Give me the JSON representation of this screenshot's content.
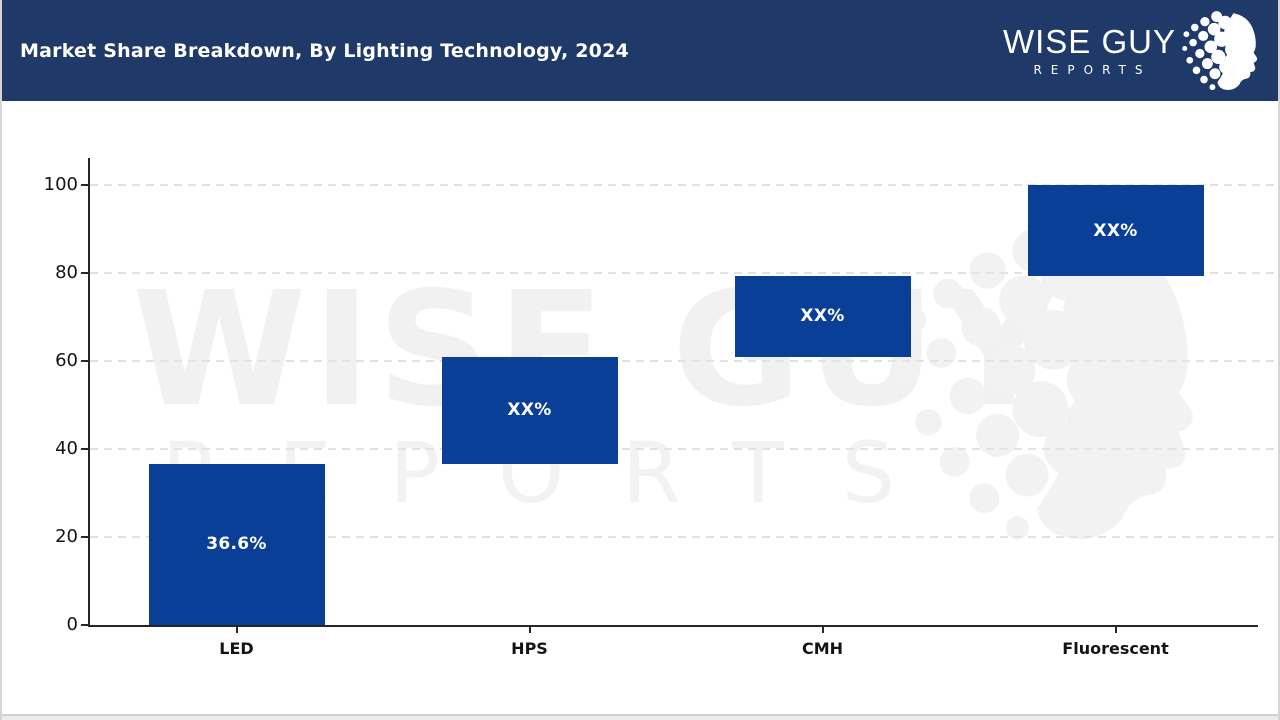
{
  "header": {
    "title": "Market Share Breakdown, By Lighting Technology, 2024",
    "background": "#1f3a68",
    "logo": {
      "primary": "WISE GUY",
      "secondary": "REPORTS"
    }
  },
  "watermark": {
    "primary": "WISE GUY",
    "secondary": "REPORTS"
  },
  "chart_data": {
    "type": "bar",
    "variant": "waterfall",
    "title": "Market Share Breakdown, By Lighting Technology, 2024",
    "categories": [
      "LED",
      "HPS",
      "CMH",
      "Fluorescent"
    ],
    "segments": [
      {
        "category": "LED",
        "start": 0,
        "end": 36.6,
        "label": "36.6%"
      },
      {
        "category": "HPS",
        "start": 36.6,
        "end": 61.0,
        "label": "XX%"
      },
      {
        "category": "CMH",
        "start": 61.0,
        "end": 79.3,
        "label": "XX%"
      },
      {
        "category": "Fluorescent",
        "start": 79.3,
        "end": 100.0,
        "label": "XX%"
      }
    ],
    "ylim": [
      0,
      100
    ],
    "yticks": [
      0,
      20,
      40,
      60,
      80,
      100
    ],
    "xlabel": "",
    "ylabel": "",
    "grid": "dashed-horizontal",
    "legend": "none",
    "bar_color": "#0a3f97",
    "bar_label_color": "#ffffff",
    "axis_color": "#262626",
    "gridline_color": "#e3e3e3"
  }
}
